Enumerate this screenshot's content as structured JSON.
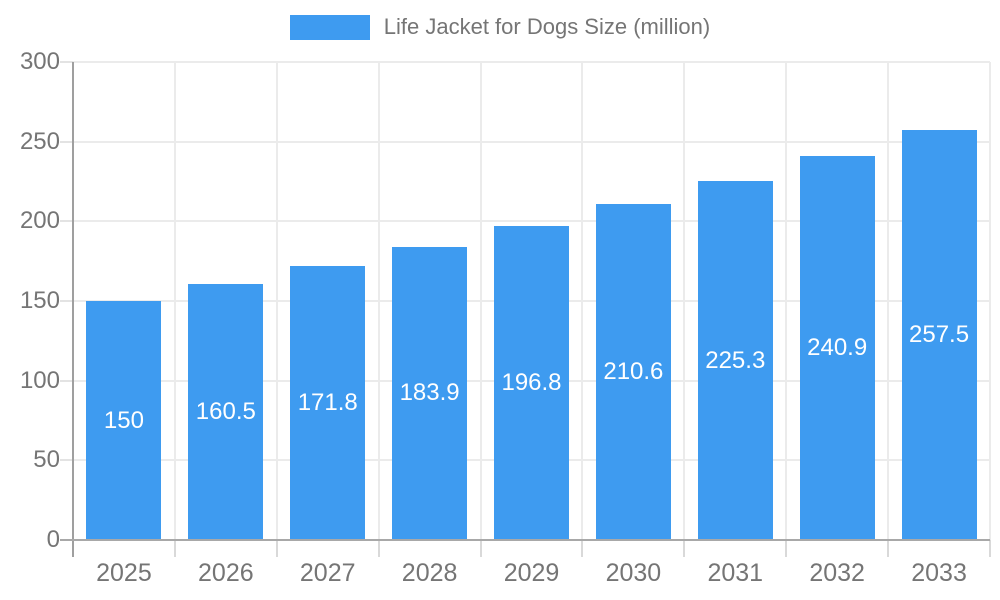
{
  "legend": {
    "label": "Life Jacket for Dogs Size (million)",
    "swatch_color": "#3E9BF0"
  },
  "chart_data": {
    "type": "bar",
    "title": "Life Jacket for Dogs Size (million)",
    "categories": [
      "2025",
      "2026",
      "2027",
      "2028",
      "2029",
      "2030",
      "2031",
      "2032",
      "2033"
    ],
    "values": [
      150,
      160.5,
      171.8,
      183.9,
      196.8,
      210.6,
      225.3,
      240.9,
      257.5
    ],
    "series_name": "Life Jacket for Dogs Size (million)",
    "xlabel": "",
    "ylabel": "",
    "ylim": [
      0,
      300
    ],
    "yticks": [
      0,
      50,
      100,
      150,
      200,
      250,
      300
    ],
    "grid": true,
    "legend_position": "top-center",
    "value_labels": "inside-center",
    "colors": {
      "bar": "#3E9BF0",
      "value_label_text": "#ffffff",
      "axis_text": "#757575",
      "gridline": "#ebebeb",
      "axis_line": "#9f9f9f",
      "background": "#ffffff"
    }
  }
}
